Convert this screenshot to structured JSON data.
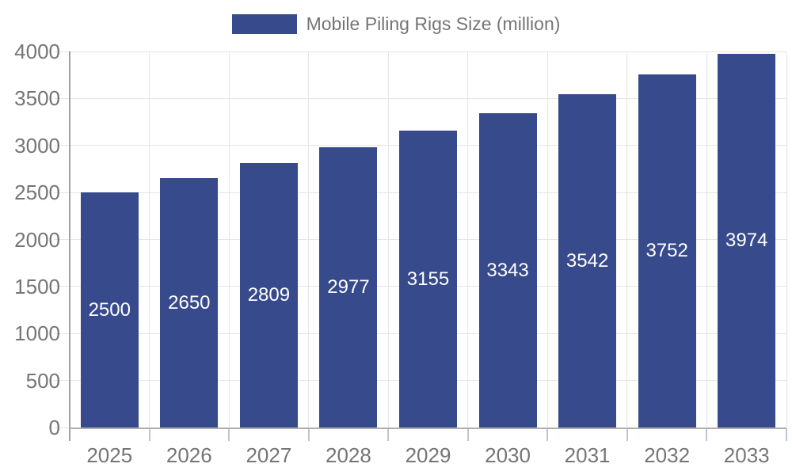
{
  "legend": {
    "label": "Mobile Piling Rigs Size (million)"
  },
  "colors": {
    "bar": "#374a8b",
    "bar_label": "#ffffff",
    "axis_text": "#757575",
    "legend_text": "#757575",
    "grid_line": "#e5e5e5",
    "y_axis_line": "#a0a0a0",
    "x_axis_line": "#b0b0b0",
    "x_tick": "#bdc5d8",
    "background": "#ffffff"
  },
  "chart_data": {
    "type": "bar",
    "title": "",
    "categories": [
      "2025",
      "2026",
      "2027",
      "2028",
      "2029",
      "2030",
      "2031",
      "2032",
      "2033"
    ],
    "series": [
      {
        "name": "Mobile Piling Rigs Size (million)",
        "values": [
          2500,
          2650,
          2809,
          2977,
          3155,
          3343,
          3542,
          3752,
          3974
        ]
      }
    ],
    "xlabel": "",
    "ylabel": "",
    "ylim": [
      0,
      4000
    ],
    "yticks": [
      0,
      500,
      1000,
      1500,
      2000,
      2500,
      3000,
      3500,
      4000
    ],
    "grid": true,
    "legend_position": "top-center",
    "value_labels": "inside-middle"
  }
}
